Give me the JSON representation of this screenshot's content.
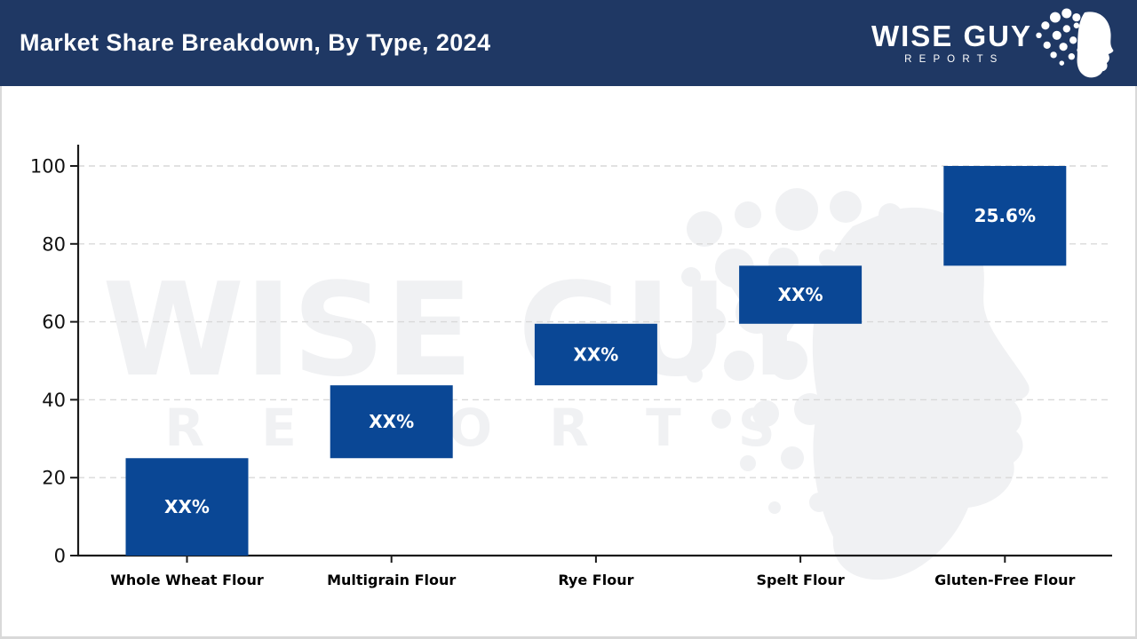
{
  "header": {
    "title": "Market Share Breakdown, By Type, 2024",
    "logo": {
      "wordmark": "WISE GUY",
      "subtext": "R E P O R T S"
    }
  },
  "watermark": {
    "wordmark": "WISE GUY",
    "subtext": "R E P O R T S"
  },
  "icons": {
    "logo_face": "dotted-head-profile",
    "watermark_face": "dotted-head-profile"
  },
  "colors": {
    "header_bg": "#1f3864",
    "bar": "#0a4795",
    "bar_label_text": "#ffffff",
    "grid": "#d9d9d9",
    "axis": "#1a1a1a",
    "tick_text": "#111111",
    "watermark": "#f0f1f3"
  },
  "chart_data": {
    "type": "bar",
    "subtype": "waterfall",
    "title": "Market Share Breakdown, By Type, 2024",
    "xlabel": "",
    "ylabel": "",
    "categories": [
      "Whole Wheat Flour",
      "Multigrain Flour",
      "Rye Flour",
      "Spelt Flour",
      "Gluten-Free Flour"
    ],
    "segments": [
      {
        "category": "Whole Wheat Flour",
        "start": 0,
        "end": 25.0,
        "label": "XX%"
      },
      {
        "category": "Multigrain Flour",
        "start": 25.0,
        "end": 43.7,
        "label": "XX%"
      },
      {
        "category": "Rye Flour",
        "start": 43.7,
        "end": 59.5,
        "label": "XX%"
      },
      {
        "category": "Spelt Flour",
        "start": 59.5,
        "end": 74.4,
        "label": "XX%"
      },
      {
        "category": "Gluten-Free Flour",
        "start": 74.4,
        "end": 100.0,
        "label": "25.6%"
      }
    ],
    "value_suffix": "%",
    "yticks": [
      0,
      20,
      40,
      60,
      80,
      100
    ],
    "ylim": [
      0,
      105
    ],
    "grid": "horizontal-dashed",
    "legend": "none"
  }
}
